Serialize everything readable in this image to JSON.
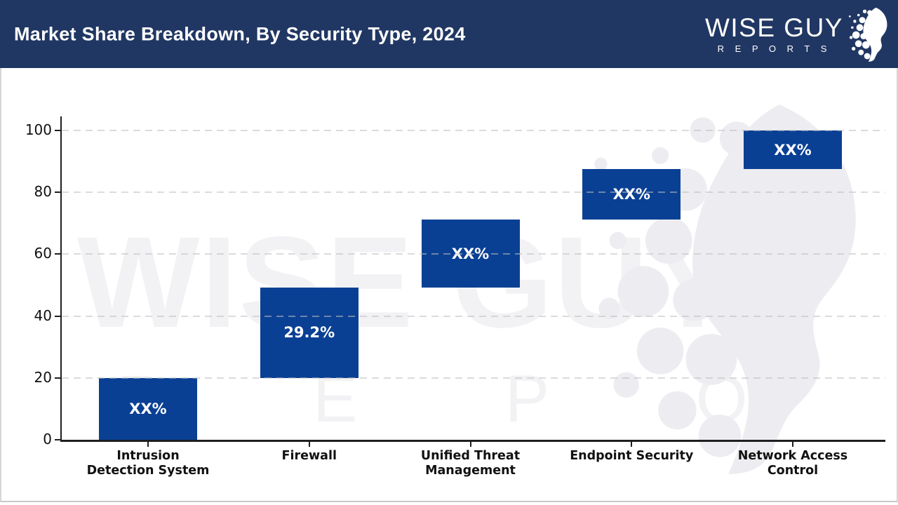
{
  "header": {
    "title": "Market Share Breakdown, By Security Type, 2024",
    "logo": {
      "name": "WISE GUY",
      "sub": "R E P O R T S"
    }
  },
  "watermark": {
    "name": "WISE GUY",
    "sub": "R E P O R T S"
  },
  "chart_data": {
    "type": "bar",
    "subtype": "waterfall",
    "title": "Market Share Breakdown, By Security Type, 2024",
    "categories": [
      "Intrusion Detection System",
      "Firewall",
      "Unified Threat Management",
      "Endpoint Security",
      "Network Access Control"
    ],
    "bars": [
      {
        "category": "Intrusion Detection System",
        "label_lines": [
          "Intrusion",
          "Detection System"
        ],
        "start": 0,
        "end": 20,
        "value_label": "XX%"
      },
      {
        "category": "Firewall",
        "label_lines": [
          "Firewall"
        ],
        "start": 20,
        "end": 49.2,
        "value_label": "29.2%"
      },
      {
        "category": "Unified Threat Management",
        "label_lines": [
          "Unified Threat",
          "Management"
        ],
        "start": 49.2,
        "end": 71.2,
        "value_label": "XX%"
      },
      {
        "category": "Endpoint Security",
        "label_lines": [
          "Endpoint Security"
        ],
        "start": 71.2,
        "end": 87.5,
        "value_label": "XX%"
      },
      {
        "category": "Network Access Control",
        "label_lines": [
          "Network Access",
          "Control"
        ],
        "start": 87.5,
        "end": 100,
        "value_label": "XX%"
      }
    ],
    "yticks": [
      0,
      20,
      40,
      60,
      80,
      100
    ],
    "ylim": [
      0,
      100
    ],
    "grid": "dashed-horizontal",
    "legend": "none",
    "bar_color": "#0a4094",
    "value_label_color": "#ffffff",
    "axis_color": "#1f1f1f"
  },
  "colors": {
    "header_bg": "#213763",
    "bar": "#0a4094",
    "grid": "#bebebe",
    "border": "#d6d6d6"
  }
}
